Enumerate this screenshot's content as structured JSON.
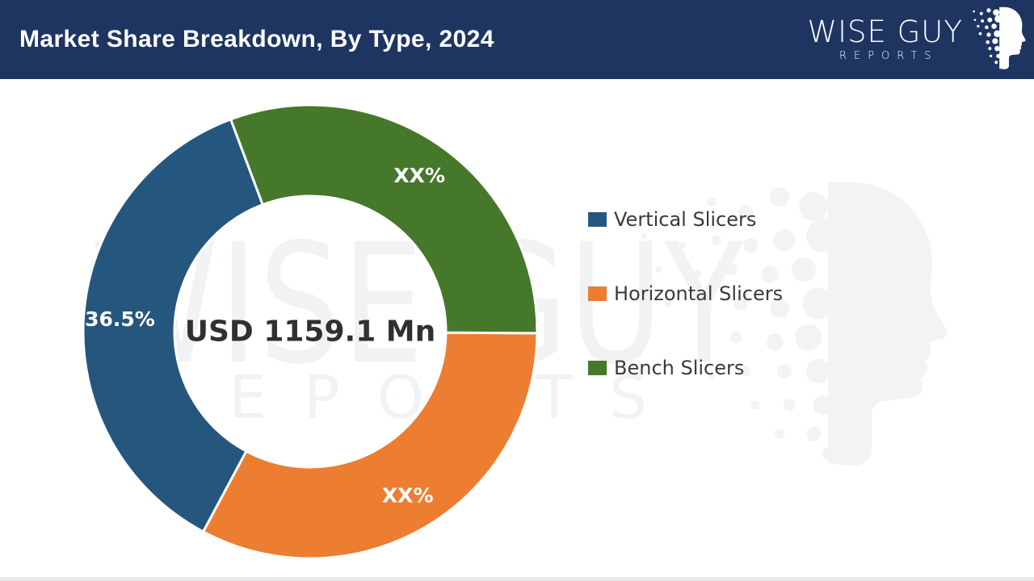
{
  "header": {
    "title": "Market Share Breakdown, By Type, 2024"
  },
  "logo": {
    "wordmark": "WISE GUY",
    "subtext": "REPORTS"
  },
  "watermark": {
    "line1": "WISE GUY",
    "line2": "REPORTS"
  },
  "chart_data": {
    "type": "donut",
    "title": "Market Share Breakdown, By Type, 2024",
    "center_label": "USD 1159.1 Mn",
    "legend_position": "right",
    "start_angle_deg": 110.5,
    "counterclockwise": true,
    "segments": [
      {
        "name": "Vertical Slicers",
        "display_label": "36.5%",
        "value_pct": 36.5,
        "estimated": false,
        "color": "#25567E"
      },
      {
        "name": "Horizontal Slicers",
        "display_label": "XX%",
        "value_pct": 32.7,
        "estimated": true,
        "color": "#ED7D31"
      },
      {
        "name": "Bench Slicers",
        "display_label": "XX%",
        "value_pct": 30.8,
        "estimated": true,
        "color": "#46782B"
      }
    ]
  }
}
